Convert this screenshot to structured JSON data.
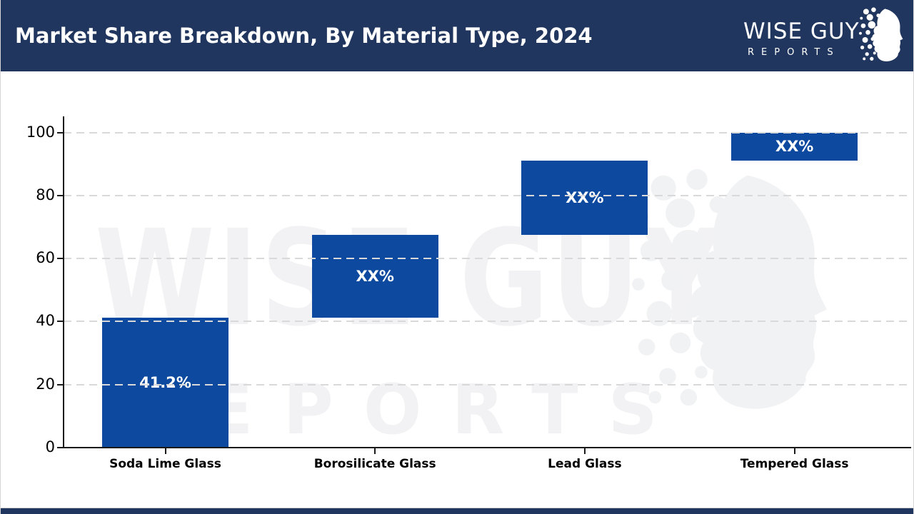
{
  "header": {
    "title": "Market Share Breakdown, By Material Type, 2024",
    "bg_color": "#21365e",
    "logo": {
      "line1": "WISE GUY",
      "line2": "REPORTS",
      "head_icon": "dotted-face-profile"
    }
  },
  "watermark": {
    "line1": "WISE GUY",
    "line2": "REPORTS",
    "head_icon": "dotted-face-profile"
  },
  "chart_data": {
    "type": "bar",
    "subtype": "waterfall",
    "title": "Market Share Breakdown, By Material Type, 2024",
    "categories": [
      "Soda Lime Glass",
      "Borosilicate Glass",
      "Lead Glass",
      "Tempered Glass"
    ],
    "segments": [
      {
        "category": "Soda Lime Glass",
        "start": 0,
        "end": 41.2,
        "label": "41.2%"
      },
      {
        "category": "Borosilicate Glass",
        "start": 41.2,
        "end": 67.5,
        "label": "XX%"
      },
      {
        "category": "Lead Glass",
        "start": 67.5,
        "end": 91,
        "label": "XX%"
      },
      {
        "category": "Tempered Glass",
        "start": 91,
        "end": 100,
        "label": "XX%"
      }
    ],
    "yticks": [
      0,
      20,
      40,
      60,
      80,
      100
    ],
    "ylim": [
      0,
      105
    ],
    "xlabel": "",
    "ylabel": "",
    "bar_color": "#0d4a9f",
    "value_label_color": "#ffffff",
    "grid": "horizontal-dashed",
    "grid_color": "#d9d9d9",
    "legend": "none"
  }
}
